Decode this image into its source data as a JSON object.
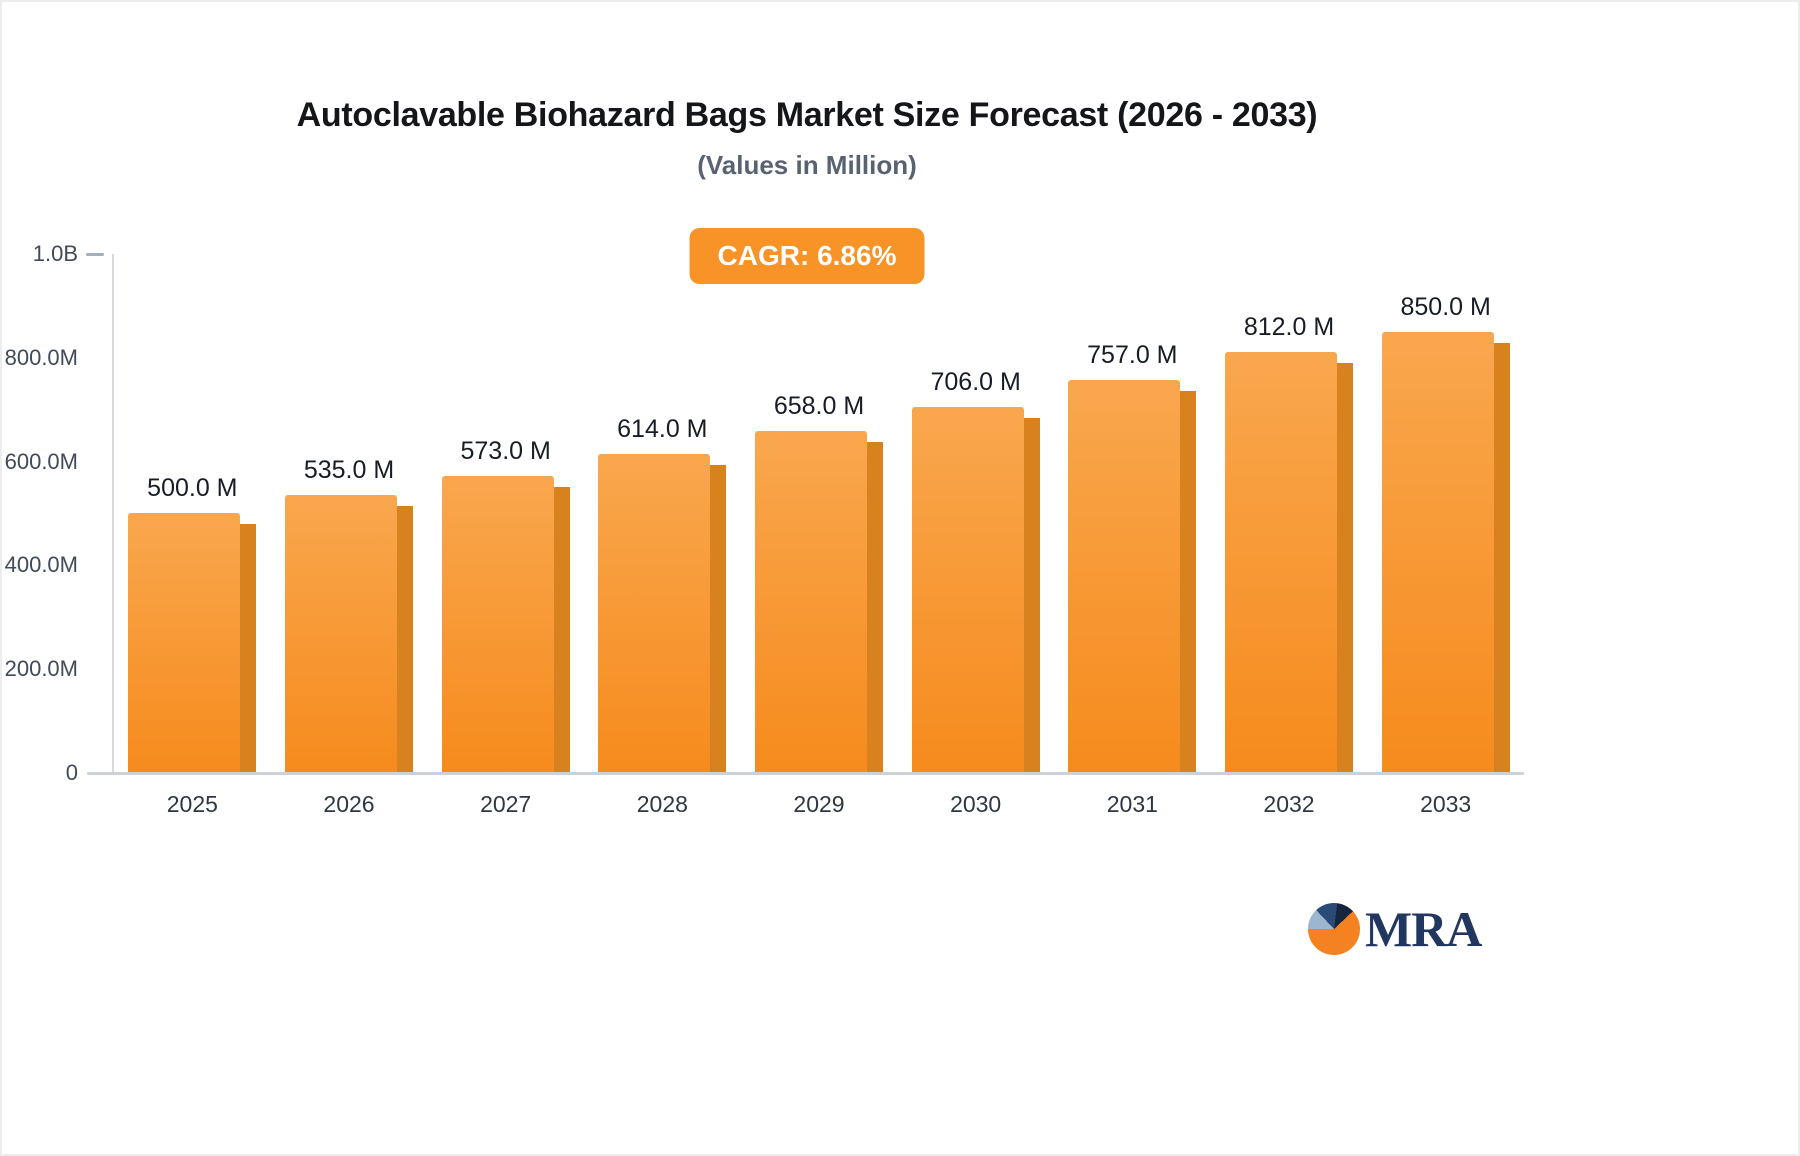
{
  "chart_data": {
    "type": "bar",
    "title": "Autoclavable Biohazard Bags Market Size Forecast (2026 - 2033)",
    "subtitle": "(Values in Million)",
    "annotation": "CAGR: 6.86%",
    "categories": [
      "2025",
      "2026",
      "2027",
      "2028",
      "2029",
      "2030",
      "2031",
      "2032",
      "2033"
    ],
    "values": [
      500.0,
      535.0,
      573.0,
      614.0,
      658.0,
      706.0,
      757.0,
      812.0,
      850.0
    ],
    "value_labels": [
      "500.0 M",
      "535.0 M",
      "573.0 M",
      "614.0 M",
      "658.0 M",
      "706.0 M",
      "757.0 M",
      "812.0 M",
      "850.0 M"
    ],
    "ylim": [
      0,
      1000
    ],
    "y_ticks": [
      {
        "label": "1.0B",
        "value": 1000,
        "tick": true
      },
      {
        "label": "800.0M",
        "value": 800,
        "tick": false
      },
      {
        "label": "600.0M",
        "value": 600,
        "tick": false
      },
      {
        "label": "400.0M",
        "value": 400,
        "tick": false
      },
      {
        "label": "200.0M",
        "value": 200,
        "tick": false
      },
      {
        "label": "0",
        "value": 0,
        "tick": false
      }
    ],
    "grid": false,
    "legend": "none"
  },
  "colors": {
    "badge_background": "#f79327",
    "bar_top": "#f9a74e",
    "bar_bottom": "#f68b1d",
    "bar_side": "#d8821f",
    "axis_line": "#ccd1d8",
    "title_text": "#14161a",
    "subtitle_text": "#596273",
    "logo_orange": "#f58220",
    "logo_navy": "#21375f",
    "logo_steel": "#9bb6ce"
  },
  "logo": {
    "text": "MRA"
  }
}
